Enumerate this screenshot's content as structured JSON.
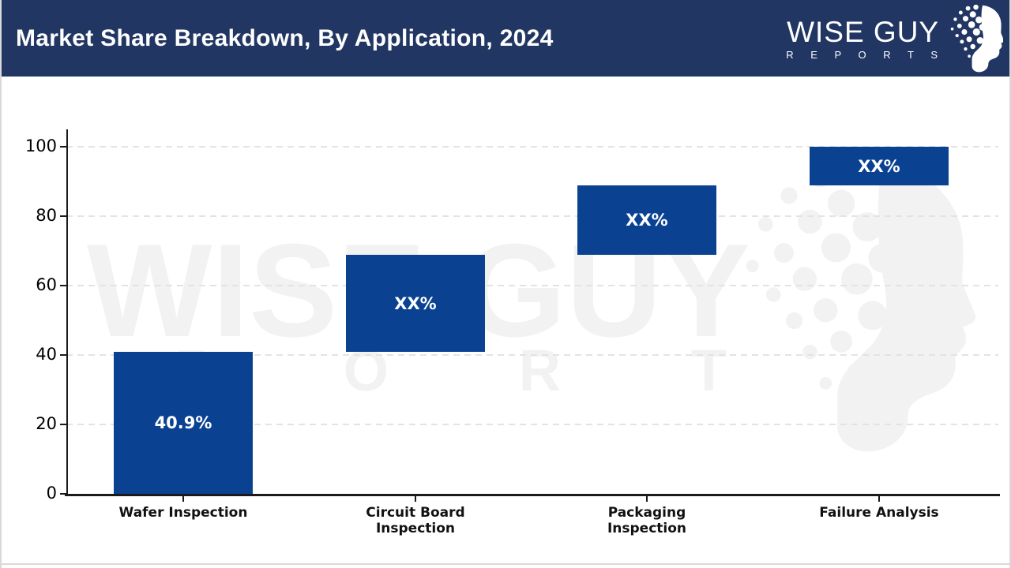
{
  "header": {
    "title": "Market Share Breakdown, By Application, 2024",
    "logo": {
      "wordmark": "WISE GUY",
      "subtext": "R E P O R T S",
      "face_icon": "head-profile-dots-icon"
    }
  },
  "watermark": {
    "line1": "WISE GUY",
    "line2": "P O R T S",
    "face_icon": "head-profile-dots-watermark"
  },
  "chart_data": {
    "type": "bar",
    "subtype": "waterfall",
    "title": "Market Share Breakdown, By Application, 2024",
    "categories": [
      "Wafer Inspection",
      "Circuit Board\nInspection",
      "Packaging\nInspection",
      "Failure Analysis"
    ],
    "segments": [
      {
        "category": "Wafer Inspection",
        "start": 0,
        "end": 40.9,
        "label": "40.9%"
      },
      {
        "category": "Circuit Board Inspection",
        "start": 40.9,
        "end": 68.8,
        "label": "XX%"
      },
      {
        "category": "Packaging Inspection",
        "start": 68.8,
        "end": 88.8,
        "label": "XX%"
      },
      {
        "category": "Failure Analysis",
        "start": 88.8,
        "end": 100,
        "label": "XX%"
      }
    ],
    "xlabel": "",
    "ylabel": "",
    "ylim": [
      0,
      100
    ],
    "yticks": [
      0,
      20,
      40,
      60,
      80,
      100
    ],
    "grid": "horizontal-dashed",
    "legend": "none",
    "bar_color": "#0a4291",
    "bar_label_color": "#ffffff"
  },
  "colors": {
    "header_bg": "#213662",
    "bar": "#0a4291",
    "watermark": "#f2f2f2",
    "gridline": "#e3e3e3",
    "axis": "#1a1a1a",
    "title_text": "#ffffff"
  }
}
